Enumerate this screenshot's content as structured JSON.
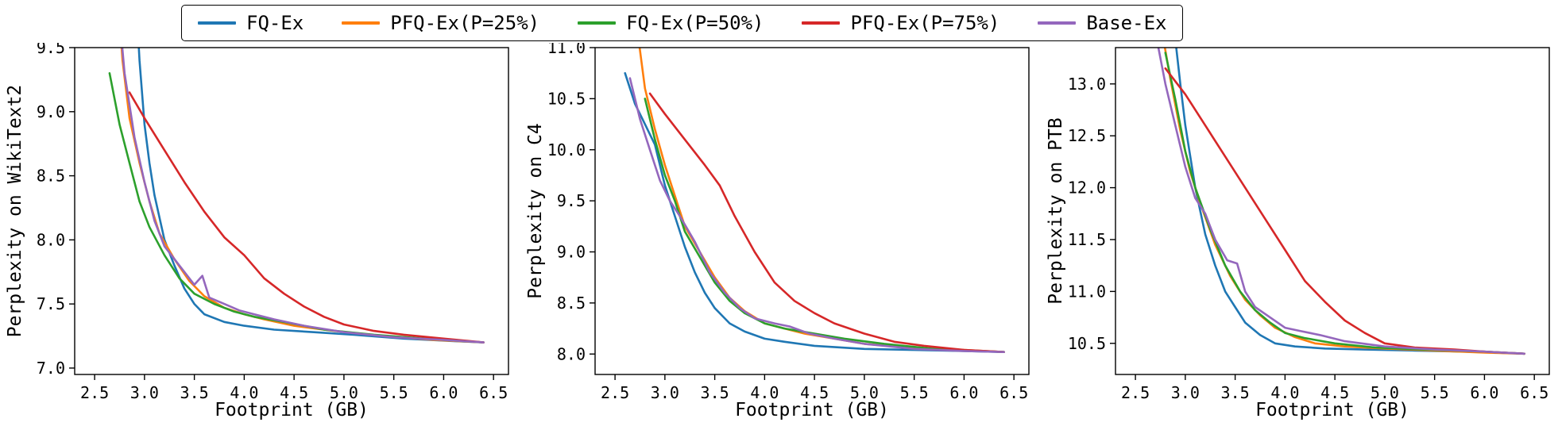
{
  "legend": {
    "items": [
      {
        "label": "FQ-Ex",
        "color": "#1f77b4"
      },
      {
        "label": "PFQ-Ex(P=25%)",
        "color": "#ff7f0e"
      },
      {
        "label": "FQ-Ex(P=50%)",
        "color": "#2ca02c"
      },
      {
        "label": "PFQ-Ex(P=75%)",
        "color": "#d62728"
      },
      {
        "label": "Base-Ex",
        "color": "#9467bd"
      }
    ]
  },
  "chart_data": [
    {
      "type": "line",
      "title": "",
      "xlabel": "Footprint (GB)",
      "ylabel": "Perplexity on WikiText2",
      "xlim": [
        2.3,
        6.65
      ],
      "ylim": [
        6.95,
        9.5
      ],
      "xticks": [
        2.5,
        3.0,
        3.5,
        4.0,
        4.5,
        5.0,
        5.5,
        6.0,
        6.5
      ],
      "yticks": [
        7.0,
        7.5,
        8.0,
        8.5,
        9.0,
        9.5
      ],
      "grid": false,
      "legend_position": "figure-top",
      "series": [
        {
          "name": "FQ-Ex",
          "x": [
            2.88,
            2.95,
            3.0,
            3.05,
            3.1,
            3.2,
            3.3,
            3.4,
            3.5,
            3.6,
            3.8,
            4.0,
            4.3,
            4.7,
            5.1,
            5.6,
            6.1,
            6.4
          ],
          "y": [
            10.4,
            9.4,
            8.9,
            8.6,
            8.35,
            8.0,
            7.8,
            7.62,
            7.5,
            7.42,
            7.36,
            7.33,
            7.3,
            7.28,
            7.26,
            7.23,
            7.21,
            7.2
          ]
        },
        {
          "name": "PFQ-Ex(P=25%)",
          "x": [
            2.7,
            2.78,
            2.85,
            2.95,
            3.05,
            3.15,
            3.3,
            3.45,
            3.6,
            3.8,
            4.0,
            4.2,
            4.5,
            4.9,
            5.4,
            5.9,
            6.4
          ],
          "y": [
            10.3,
            9.4,
            8.95,
            8.6,
            8.3,
            8.05,
            7.85,
            7.68,
            7.56,
            7.47,
            7.42,
            7.38,
            7.33,
            7.29,
            7.25,
            7.22,
            7.2
          ]
        },
        {
          "name": "FQ-Ex(P=50%)",
          "x": [
            2.65,
            2.75,
            2.85,
            2.95,
            3.05,
            3.2,
            3.35,
            3.5,
            3.7,
            3.9,
            4.1,
            4.4,
            4.8,
            5.3,
            5.8,
            6.4
          ],
          "y": [
            9.3,
            8.9,
            8.6,
            8.3,
            8.1,
            7.88,
            7.7,
            7.58,
            7.5,
            7.44,
            7.4,
            7.36,
            7.3,
            7.26,
            7.23,
            7.2
          ]
        },
        {
          "name": "PFQ-Ex(P=75%)",
          "x": [
            2.85,
            3.0,
            3.2,
            3.4,
            3.6,
            3.8,
            4.0,
            4.2,
            4.4,
            4.6,
            4.8,
            5.0,
            5.3,
            5.6,
            6.0,
            6.4
          ],
          "y": [
            9.15,
            8.95,
            8.7,
            8.45,
            8.22,
            8.02,
            7.88,
            7.7,
            7.58,
            7.48,
            7.4,
            7.34,
            7.29,
            7.26,
            7.23,
            7.2
          ]
        },
        {
          "name": "Base-Ex",
          "x": [
            2.72,
            2.8,
            2.9,
            3.0,
            3.1,
            3.2,
            3.35,
            3.5,
            3.58,
            3.65,
            3.8,
            3.95,
            4.1,
            4.3,
            4.6,
            5.0,
            5.5,
            6.0,
            6.4
          ],
          "y": [
            10.0,
            9.3,
            8.8,
            8.45,
            8.15,
            7.95,
            7.8,
            7.65,
            7.72,
            7.55,
            7.5,
            7.45,
            7.42,
            7.38,
            7.33,
            7.28,
            7.24,
            7.22,
            7.2
          ]
        }
      ]
    },
    {
      "type": "line",
      "title": "",
      "xlabel": "Footprint (GB)",
      "ylabel": "Perplexity on C4",
      "xlim": [
        2.3,
        6.65
      ],
      "ylim": [
        7.8,
        11.0
      ],
      "xticks": [
        2.5,
        3.0,
        3.5,
        4.0,
        4.5,
        5.0,
        5.5,
        6.0,
        6.5
      ],
      "yticks": [
        8.0,
        8.5,
        9.0,
        9.5,
        10.0,
        10.5,
        11.0
      ],
      "grid": false,
      "legend_position": "figure-top",
      "series": [
        {
          "name": "FQ-Ex",
          "x": [
            2.6,
            2.7,
            2.8,
            2.9,
            3.0,
            3.1,
            3.2,
            3.3,
            3.4,
            3.5,
            3.65,
            3.8,
            4.0,
            4.2,
            4.5,
            5.0,
            5.5,
            6.0,
            6.4
          ],
          "y": [
            10.75,
            10.45,
            10.25,
            10.05,
            9.65,
            9.35,
            9.05,
            8.8,
            8.6,
            8.45,
            8.3,
            8.22,
            8.15,
            8.12,
            8.08,
            8.05,
            8.04,
            8.03,
            8.02
          ]
        },
        {
          "name": "PFQ-Ex(P=25%)",
          "x": [
            2.72,
            2.8,
            2.9,
            3.0,
            3.1,
            3.2,
            3.35,
            3.5,
            3.65,
            3.8,
            4.0,
            4.2,
            4.4,
            4.7,
            5.0,
            5.5,
            6.0,
            6.4
          ],
          "y": [
            11.2,
            10.6,
            10.2,
            9.85,
            9.55,
            9.25,
            9.0,
            8.75,
            8.55,
            8.42,
            8.3,
            8.25,
            8.2,
            8.15,
            8.1,
            8.06,
            8.04,
            8.02
          ]
        },
        {
          "name": "FQ-Ex(P=50%)",
          "x": [
            2.8,
            2.9,
            3.0,
            3.1,
            3.2,
            3.35,
            3.5,
            3.65,
            3.8,
            4.0,
            4.2,
            4.5,
            4.8,
            5.2,
            5.7,
            6.4
          ],
          "y": [
            10.5,
            10.1,
            9.75,
            9.5,
            9.2,
            8.95,
            8.7,
            8.52,
            8.4,
            8.3,
            8.25,
            8.2,
            8.15,
            8.1,
            8.05,
            8.02
          ]
        },
        {
          "name": "PFQ-Ex(P=75%)",
          "x": [
            2.85,
            3.0,
            3.2,
            3.4,
            3.55,
            3.7,
            3.9,
            4.1,
            4.3,
            4.5,
            4.7,
            5.0,
            5.3,
            5.6,
            6.0,
            6.4
          ],
          "y": [
            10.55,
            10.35,
            10.1,
            9.85,
            9.65,
            9.35,
            9.0,
            8.7,
            8.52,
            8.4,
            8.3,
            8.2,
            8.12,
            8.08,
            8.04,
            8.02
          ]
        },
        {
          "name": "Base-Ex",
          "x": [
            2.65,
            2.75,
            2.85,
            2.95,
            3.05,
            3.15,
            3.3,
            3.45,
            3.6,
            3.75,
            3.9,
            4.1,
            4.25,
            4.45,
            4.7,
            5.0,
            5.5,
            6.0,
            6.4
          ],
          "y": [
            10.7,
            10.3,
            10.0,
            9.7,
            9.5,
            9.35,
            9.1,
            8.8,
            8.6,
            8.45,
            8.35,
            8.3,
            8.27,
            8.2,
            8.15,
            8.1,
            8.05,
            8.03,
            8.02
          ]
        }
      ]
    },
    {
      "type": "line",
      "title": "",
      "xlabel": "Footprint (GB)",
      "ylabel": "Perplexity on PTB",
      "xlim": [
        2.3,
        6.65
      ],
      "ylim": [
        10.2,
        13.35
      ],
      "xticks": [
        2.5,
        3.0,
        3.5,
        4.0,
        4.5,
        5.0,
        5.5,
        6.0,
        6.5
      ],
      "yticks": [
        10.5,
        11.0,
        11.5,
        12.0,
        12.5,
        13.0
      ],
      "grid": false,
      "legend_position": "figure-top",
      "series": [
        {
          "name": "FQ-Ex",
          "x": [
            2.88,
            2.95,
            3.0,
            3.1,
            3.2,
            3.3,
            3.4,
            3.5,
            3.6,
            3.75,
            3.9,
            4.1,
            4.4,
            4.8,
            5.3,
            5.8,
            6.4
          ],
          "y": [
            13.6,
            13.0,
            12.6,
            12.0,
            11.55,
            11.25,
            11.0,
            10.85,
            10.7,
            10.58,
            10.5,
            10.47,
            10.45,
            10.44,
            10.43,
            10.42,
            10.4
          ]
        },
        {
          "name": "PFQ-Ex(P=25%)",
          "x": [
            2.75,
            2.85,
            2.95,
            3.05,
            3.15,
            3.3,
            3.45,
            3.6,
            3.75,
            3.9,
            4.1,
            4.3,
            4.6,
            5.0,
            5.5,
            6.0,
            6.4
          ],
          "y": [
            13.6,
            13.05,
            12.55,
            12.15,
            11.85,
            11.45,
            11.15,
            10.92,
            10.77,
            10.65,
            10.56,
            10.5,
            10.47,
            10.45,
            10.43,
            10.41,
            10.4
          ]
        },
        {
          "name": "FQ-Ex(P=50%)",
          "x": [
            2.8,
            2.9,
            3.0,
            3.1,
            3.25,
            3.4,
            3.55,
            3.7,
            3.85,
            4.0,
            4.2,
            4.5,
            4.9,
            5.4,
            6.0,
            6.4
          ],
          "y": [
            13.3,
            12.85,
            12.35,
            12.0,
            11.6,
            11.25,
            11.0,
            10.82,
            10.7,
            10.6,
            10.55,
            10.5,
            10.46,
            10.44,
            10.42,
            10.4
          ]
        },
        {
          "name": "PFQ-Ex(P=75%)",
          "x": [
            2.8,
            3.0,
            3.2,
            3.4,
            3.6,
            3.8,
            4.0,
            4.2,
            4.4,
            4.6,
            4.8,
            5.0,
            5.3,
            5.7,
            6.0,
            6.4
          ],
          "y": [
            13.15,
            12.9,
            12.6,
            12.3,
            12.0,
            11.7,
            11.4,
            11.1,
            10.9,
            10.72,
            10.6,
            10.5,
            10.46,
            10.44,
            10.42,
            10.4
          ]
        },
        {
          "name": "Base-Ex",
          "x": [
            2.7,
            2.8,
            2.9,
            3.0,
            3.1,
            3.2,
            3.3,
            3.42,
            3.52,
            3.6,
            3.7,
            3.85,
            4.0,
            4.15,
            4.35,
            4.6,
            5.0,
            5.5,
            6.0,
            6.4
          ],
          "y": [
            13.5,
            13.0,
            12.6,
            12.2,
            11.9,
            11.75,
            11.5,
            11.3,
            11.27,
            11.0,
            10.85,
            10.75,
            10.65,
            10.62,
            10.58,
            10.52,
            10.47,
            10.44,
            10.42,
            10.4
          ]
        }
      ]
    }
  ]
}
